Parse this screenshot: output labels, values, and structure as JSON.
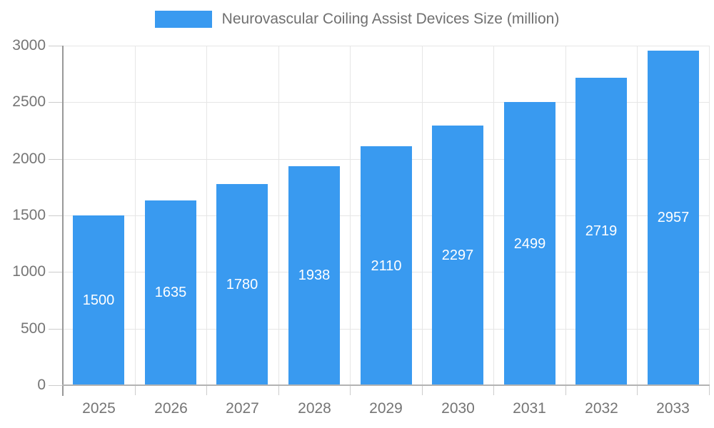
{
  "chart_data": {
    "type": "bar",
    "title": "Neurovascular Coiling Assist Devices Size (million)",
    "categories": [
      "2025",
      "2026",
      "2027",
      "2028",
      "2029",
      "2030",
      "2031",
      "2032",
      "2033"
    ],
    "values": [
      1500,
      1635,
      1780,
      1938,
      2110,
      2297,
      2499,
      2719,
      2957
    ],
    "xlabel": "",
    "ylabel": "",
    "ylim": [
      0,
      3000
    ],
    "yticks": [
      0,
      500,
      1000,
      1500,
      2000,
      2500,
      3000
    ],
    "grid": true,
    "legend_position": "top-center",
    "colors": {
      "bar": "#399AF0",
      "bar_label_text": "#ffffff",
      "axis_text": "#757575",
      "legend_text": "#707070",
      "gridline": "#e6e6e6",
      "y_axis_line": "#999999",
      "x_axis_line": "#b3b3b3",
      "tick": "#cccccc",
      "background": "#ffffff"
    }
  }
}
